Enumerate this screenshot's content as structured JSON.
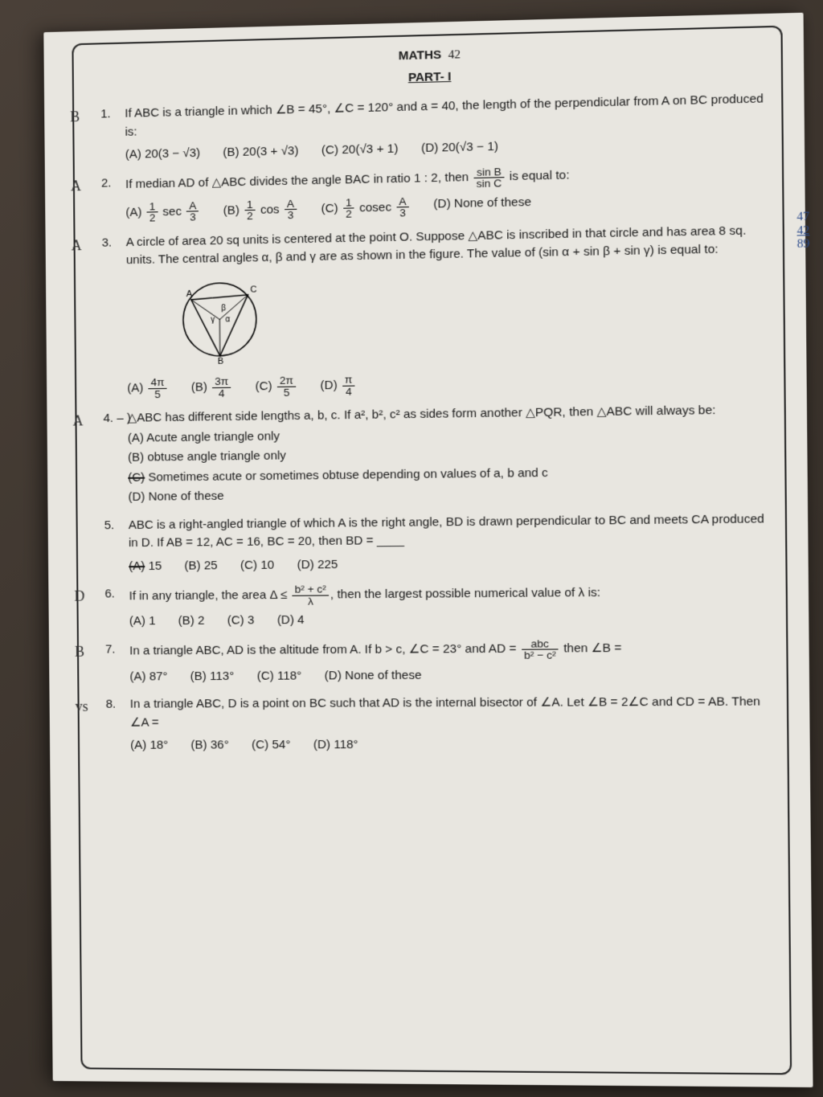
{
  "header": {
    "title": "MATHS",
    "handwritten": "42",
    "part": "PART- I"
  },
  "side_note": {
    "line1": "47",
    "line2": "42",
    "line3": "89"
  },
  "questions": [
    {
      "num": "1.",
      "margin": "B",
      "text_html": "If ABC is a triangle in which ∠B = 45°, ∠C = 120° and a = 40, the length of the perpendicular from A on BC produced is:",
      "options": [
        "(A) 20(3 − √3)",
        "(B) 20(3 + √3)",
        "(C) 20(√3 + 1)",
        "(D) 20(√3 − 1)"
      ]
    },
    {
      "num": "2.",
      "margin": "A",
      "text_html": "If median AD of △ABC divides the angle BAC in ratio 1 : 2, then <span class='frac'><span class='n'>sin B</span><span class='d'>sin C</span></span> is equal to:",
      "options": [
        "(A) <span class='frac'><span class='n'>1</span><span class='d'>2</span></span> sec <span class='frac'><span class='n'>A</span><span class='d'>3</span></span>",
        "(B) <span class='frac'><span class='n'>1</span><span class='d'>2</span></span> cos <span class='frac'><span class='n'>A</span><span class='d'>3</span></span>",
        "(C) <span class='frac'><span class='n'>1</span><span class='d'>2</span></span> cosec <span class='frac'><span class='n'>A</span><span class='d'>3</span></span>",
        "(D) None of these"
      ]
    },
    {
      "num": "3.",
      "margin": "A",
      "text_html": "A circle of area 20 sq units is centered at the point O. Suppose △ABC is inscribed in that circle and has area 8 sq. units. The central angles α, β and γ are as shown in the figure. The value of (sin α + sin β + sin γ) is equal to:",
      "diagram": true,
      "options": [
        "(A) <span class='frac'><span class='n'>4π</span><span class='d'>5</span></span>",
        "(B) <span class='frac'><span class='n'>3π</span><span class='d'>4</span></span>",
        "(C) <span class='frac'><span class='n'>2π</span><span class='d'>5</span></span>",
        "(D) <span class='frac'><span class='n'>π</span><span class='d'>4</span></span>"
      ]
    },
    {
      "num": "4. – )",
      "margin": "A",
      "text_html": "△ABC has different side lengths a, b, c. If a², b², c² as sides form another △PQR, then △ABC will always be:",
      "options_col": [
        "(A) Acute angle triangle only",
        "(B) obtuse angle triangle only",
        "<span class='strike'>(C)</span> Sometimes acute or sometimes obtuse depending on values of a, b and c",
        "(D) None of these"
      ]
    },
    {
      "num": "5.",
      "margin": "",
      "text_html": "ABC is a right-angled triangle of which A is the right angle, BD is drawn perpendicular to BC and meets CA produced in D. If AB = 12, AC = 16, BC = 20, then BD = ____",
      "options": [
        "<span class='strike'>(A)</span> 15",
        "(B) 25",
        "(C) 10",
        "(D) 225"
      ]
    },
    {
      "num": "6.",
      "margin": "D",
      "text_html": "If in any triangle, the area Δ ≤ <span class='frac'><span class='n'>b² + c²</span><span class='d'>λ</span></span>, then the largest possible numerical value of λ is:",
      "options": [
        "(A) 1",
        "(B) 2",
        "(C) 3",
        "(D) 4"
      ]
    },
    {
      "num": "7.",
      "margin": "B",
      "text_html": "In a triangle ABC, AD is the altitude from A. If b > c, ∠C = 23° and AD = <span class='frac'><span class='n'>abc</span><span class='d'>b² − c²</span></span> then ∠B =",
      "options": [
        "(A) 87°",
        "(B) 113°",
        "(C) 118°",
        "(D) None of these"
      ]
    },
    {
      "num": "8.",
      "margin": "vs",
      "text_html": "In a triangle ABC, D is a point on BC such that AD is the internal bisector of ∠A. Let ∠B = 2∠C and CD = AB. Then ∠A =",
      "options": [
        "(A) 18°",
        "(B) 36°",
        "(C) 54°",
        "(D) 118°"
      ]
    }
  ],
  "diagram_svg": {
    "stroke": "#000",
    "bg": "none",
    "labels": {
      "A": "A",
      "B": "B",
      "C": "C",
      "alpha": "α",
      "beta": "β",
      "gamma": "γ"
    }
  }
}
